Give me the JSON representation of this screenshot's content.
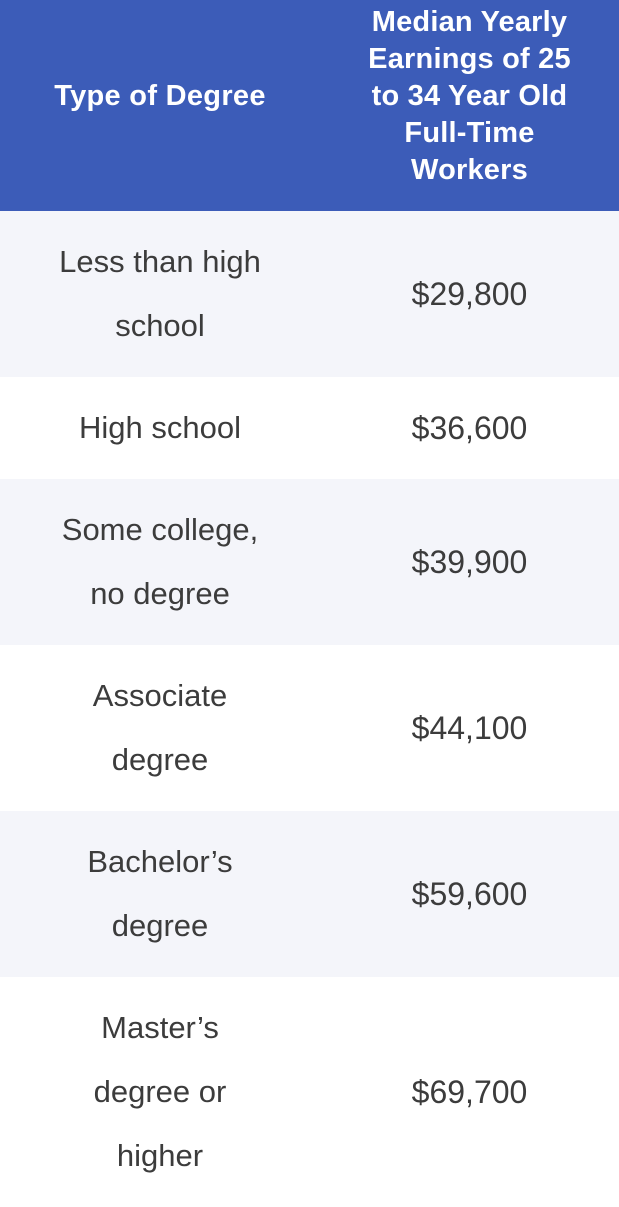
{
  "chart_data": {
    "type": "table",
    "columns": [
      "Type of Degree",
      "Median Yearly Earnings of 25 to 34 Year Old Full-Time Workers"
    ],
    "categories": [
      "Less than high school",
      "High school",
      "Some college, no degree",
      "Associate degree",
      "Bachelor’s degree",
      "Master’s degree or higher"
    ],
    "values": [
      29800,
      36600,
      39900,
      44100,
      59600,
      69700
    ],
    "values_formatted": [
      "$29,800",
      "$36,600",
      "$39,900",
      "$44,100",
      "$59,600",
      "$69,700"
    ]
  },
  "table": {
    "header": {
      "degree": "Type of Degree",
      "earnings_lines": [
        "Median Yearly",
        "Earnings of 25",
        "to 34 Year Old",
        "Full-Time",
        "Workers"
      ]
    },
    "rows": [
      {
        "degree_lines": [
          "Less than high",
          "school"
        ],
        "earnings": "$29,800"
      },
      {
        "degree_lines": [
          "High school"
        ],
        "earnings": "$36,600"
      },
      {
        "degree_lines": [
          "Some college,",
          "no degree"
        ],
        "earnings": "$39,900"
      },
      {
        "degree_lines": [
          "Associate",
          "degree"
        ],
        "earnings": "$44,100"
      },
      {
        "degree_lines": [
          "Bachelor’s",
          "degree"
        ],
        "earnings": "$59,600"
      },
      {
        "degree_lines": [
          "Master’s",
          "degree or",
          "higher"
        ],
        "earnings": "$69,700"
      }
    ]
  },
  "colors": {
    "header_bg": "#3C5CB8",
    "header_text": "#FFFFFF",
    "row_alt_bg": "#F4F5FA",
    "row_bg": "#FFFFFF",
    "body_text": "#3C3C3C"
  }
}
